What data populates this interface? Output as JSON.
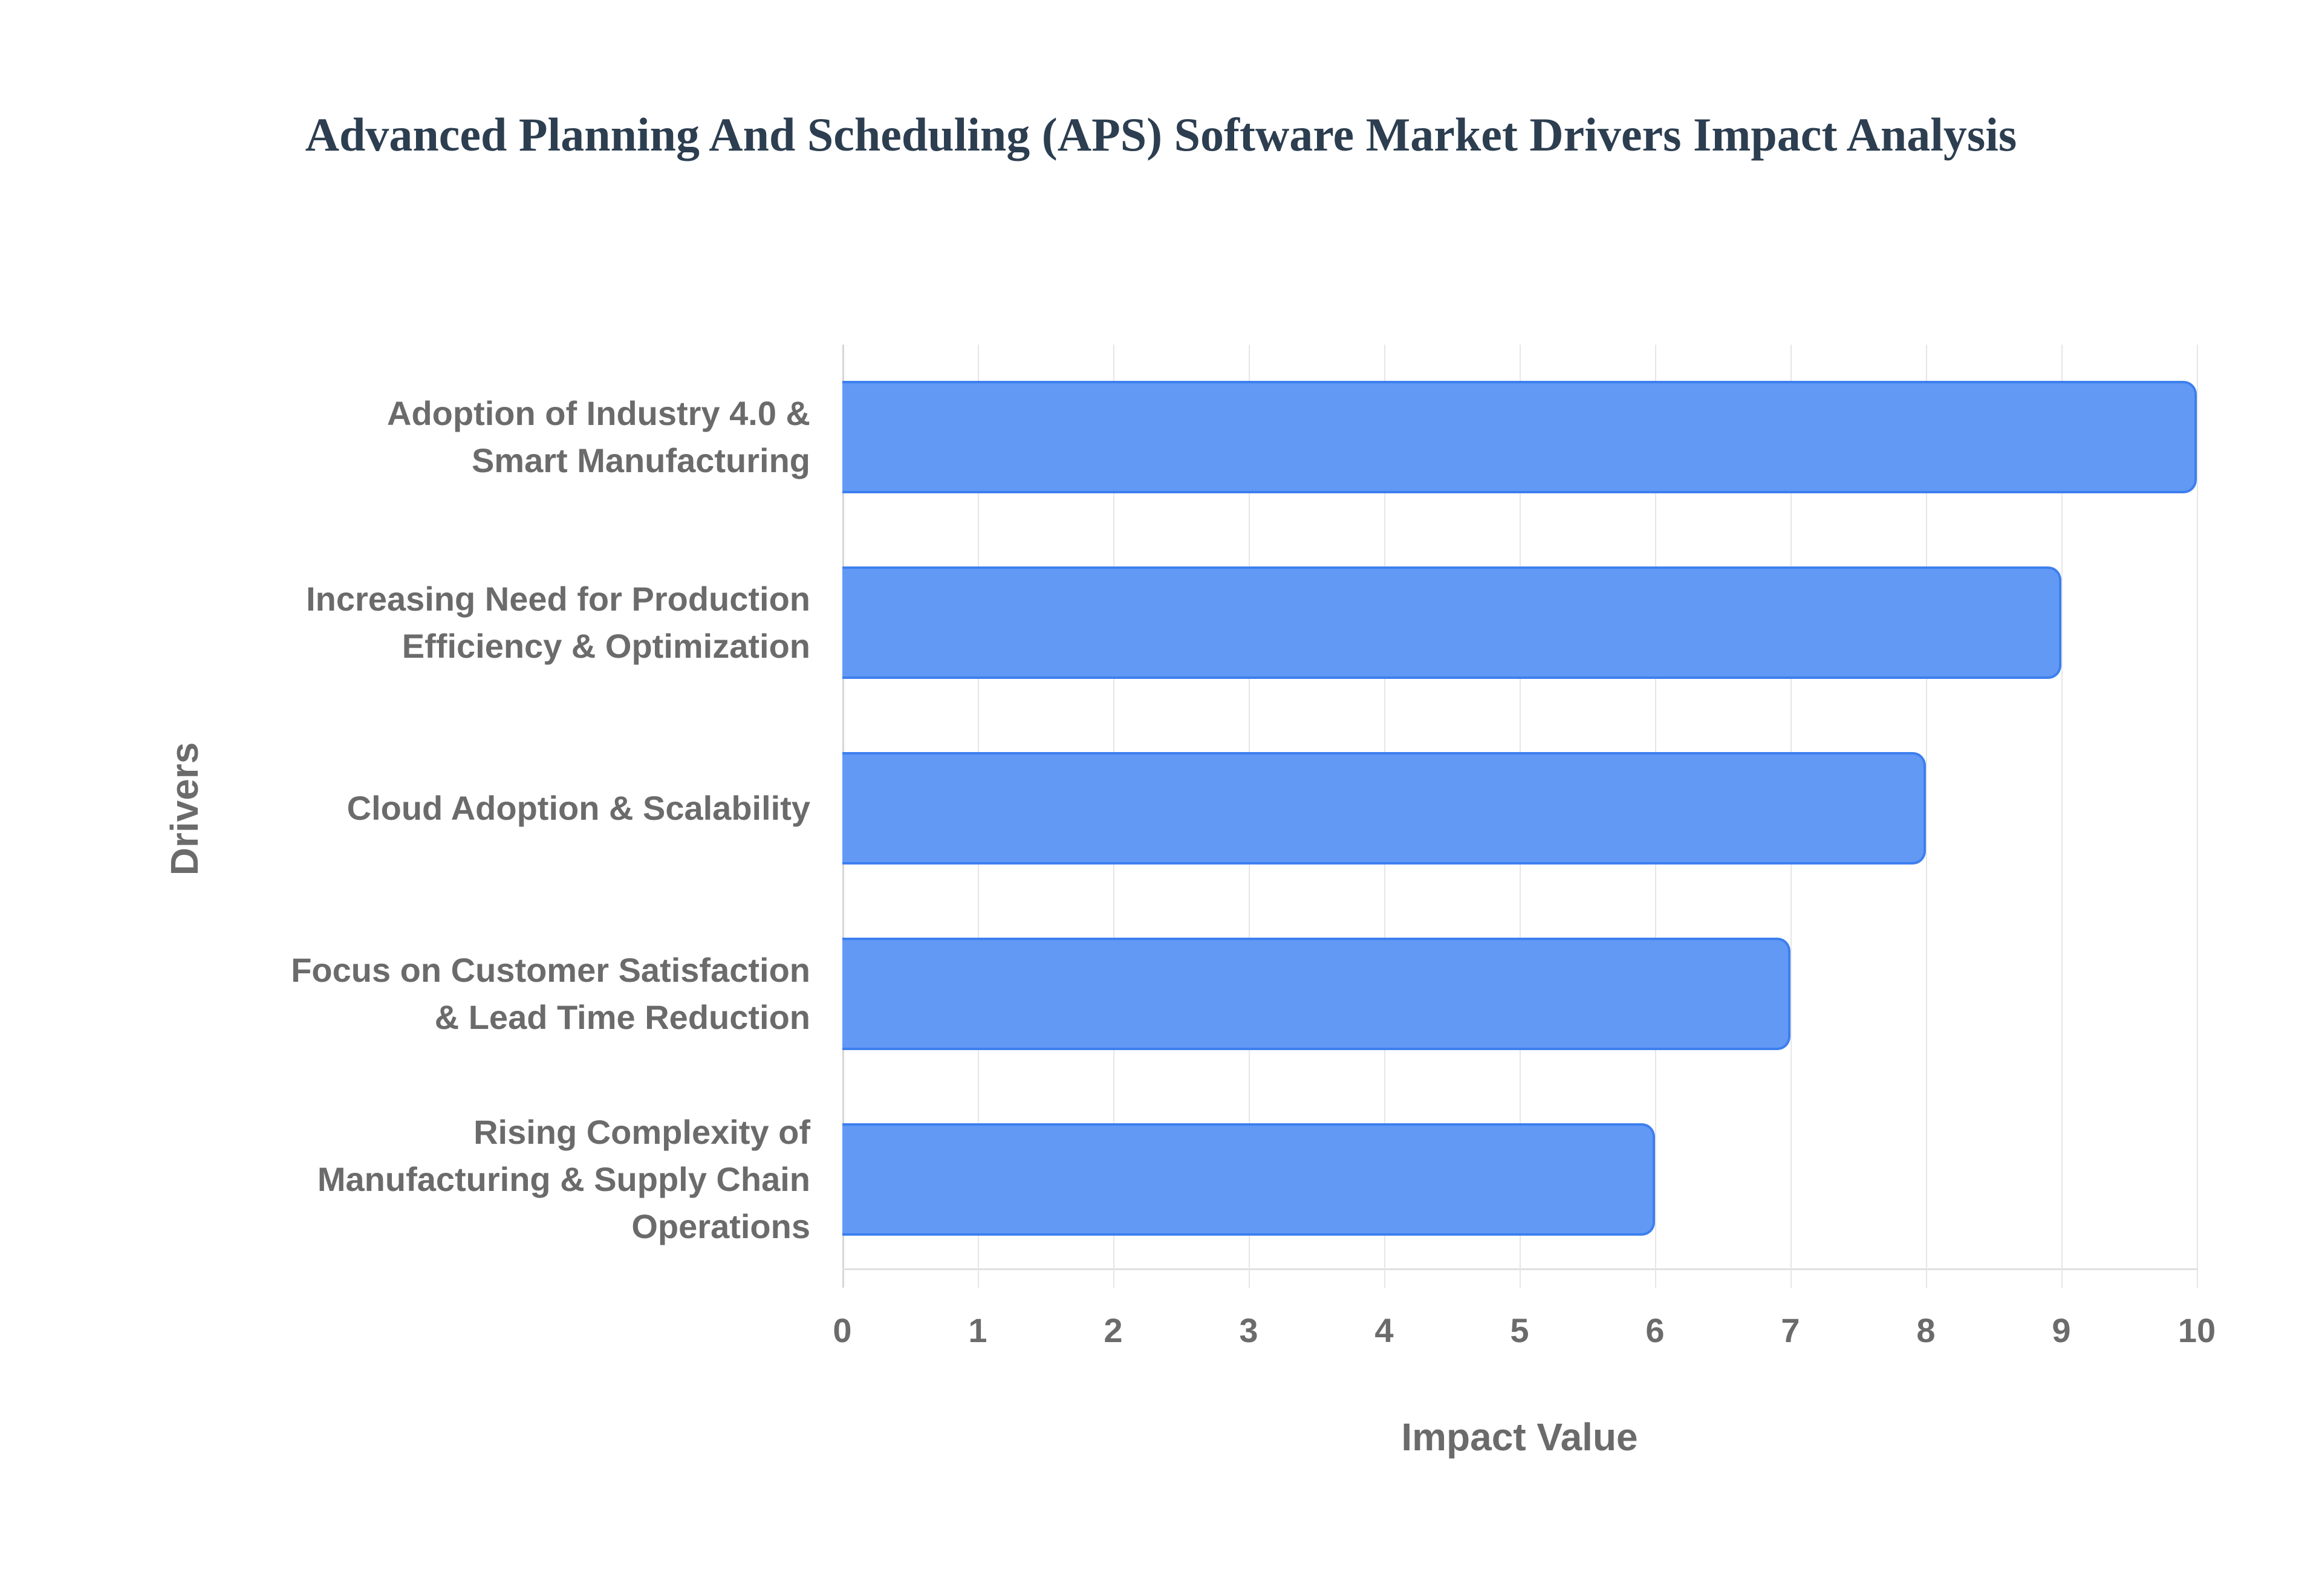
{
  "chart_data": {
    "type": "bar",
    "orientation": "horizontal",
    "title": "Advanced Planning And Scheduling (APS) Software Market Drivers Impact Analysis",
    "xlabel": "Impact Value",
    "ylabel": "Drivers",
    "xlim": [
      0,
      10
    ],
    "x_ticks": [
      "0",
      "1",
      "2",
      "3",
      "4",
      "5",
      "6",
      "7",
      "8",
      "9",
      "10"
    ],
    "grid": true,
    "legend": null,
    "categories": [
      "Adoption of Industry 4.0 & Smart Manufacturing",
      "Increasing Need for Production Efficiency & Optimization",
      "Cloud Adoption & Scalability",
      "Focus on Customer Satisfaction & Lead Time Reduction",
      "Rising Complexity of Manufacturing & Supply Chain Operations"
    ],
    "category_lines": [
      [
        "Adoption of Industry 4.0 &",
        "Smart Manufacturing"
      ],
      [
        "Increasing Need for Production",
        "Efficiency & Optimization"
      ],
      [
        "Cloud Adoption & Scalability"
      ],
      [
        "Focus on Customer Satisfaction",
        "& Lead Time Reduction"
      ],
      [
        "Rising Complexity of",
        "Manufacturing & Supply Chain",
        "Operations"
      ]
    ],
    "values": [
      10,
      9,
      8,
      7,
      6
    ],
    "bar_color": "#6199f5",
    "bar_border_color": "#3d7fee"
  }
}
